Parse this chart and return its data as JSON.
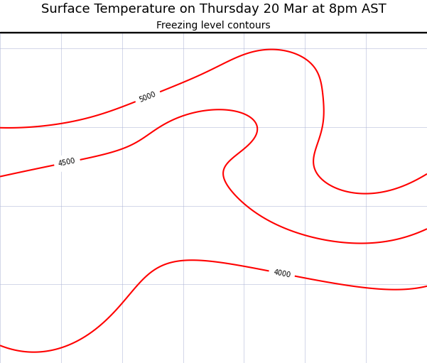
{
  "title": "Surface Temperature on Thursday 20 Mar at 8pm AST",
  "subtitle": "Freezing level contours",
  "title_fontsize": 13,
  "subtitle_fontsize": 10,
  "bg_color": "#c8cfe8",
  "ocean_color": "#c8cfe8",
  "title_bg": "#ffffff",
  "grid_color": "#b0b8d8",
  "contour_color": "#ff0000",
  "contour_label_color": "#ffffff",
  "map_extent": [
    -90,
    -55,
    7,
    28
  ],
  "figsize": [
    6.01,
    5.11
  ],
  "dpi": 100
}
